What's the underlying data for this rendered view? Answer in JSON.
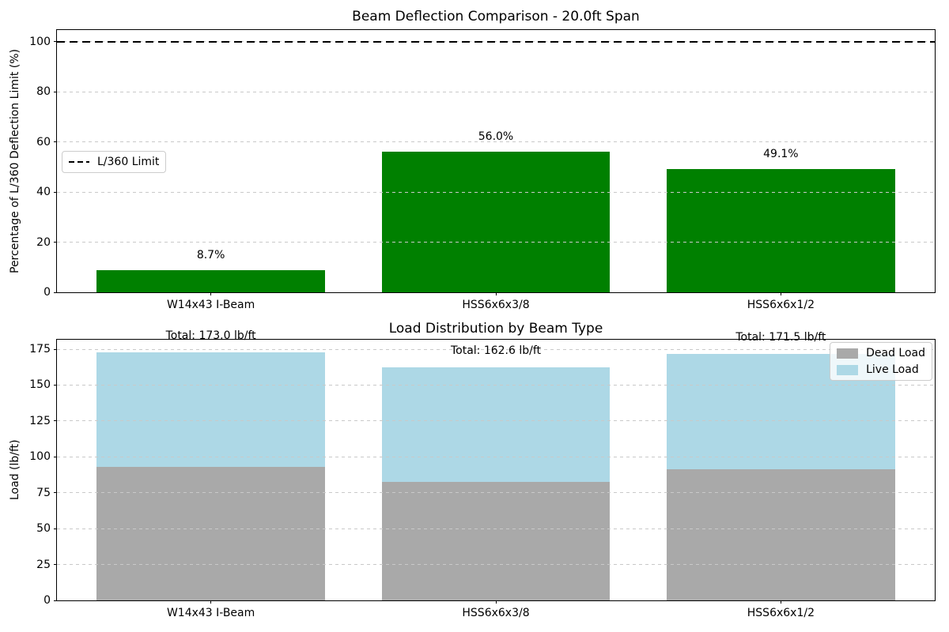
{
  "chart_data": [
    {
      "type": "bar",
      "title": "Beam Deflection Comparison - 20.0ft Span",
      "xlabel": "",
      "ylabel": "Percentage of L/360 Deflection Limit (%)",
      "categories": [
        "W14x43 I-Beam",
        "HSS6x6x3/8",
        "HSS6x6x1/2"
      ],
      "values": [
        8.7,
        56.0,
        49.1
      ],
      "bar_labels": [
        "8.7%",
        "56.0%",
        "49.1%"
      ],
      "bar_color": "#008000",
      "yticks": [
        0,
        20,
        40,
        60,
        80,
        100
      ],
      "ylim": [
        0,
        104.7
      ],
      "xlim": [
        -0.54,
        2.54
      ],
      "grid": true,
      "limit_line": {
        "value": 100,
        "label": "L/360 Limit",
        "color": "#000000",
        "style": "dashed"
      },
      "legend": {
        "position": "left-middle",
        "items": [
          {
            "label": "L/360 Limit",
            "type": "line",
            "color": "#000000"
          }
        ]
      }
    },
    {
      "type": "stacked-bar",
      "title": "Load Distribution by Beam Type",
      "xlabel": "",
      "ylabel": "Load (lb/ft)",
      "categories": [
        "W14x43 I-Beam",
        "HSS6x6x3/8",
        "HSS6x6x1/2"
      ],
      "series": [
        {
          "name": "Dead Load",
          "color": "#A9A9A9",
          "values": [
            93.0,
            82.6,
            91.5
          ]
        },
        {
          "name": "Live Load",
          "color": "#ADD8E6",
          "values": [
            80.0,
            80.0,
            80.0
          ]
        }
      ],
      "totals": [
        173.0,
        162.6,
        171.5
      ],
      "total_labels": [
        "Total: 173.0 lb/ft",
        "Total: 162.6 lb/ft",
        "Total: 171.5 lb/ft"
      ],
      "yticks": [
        0,
        25,
        50,
        75,
        100,
        125,
        150,
        175
      ],
      "ylim": [
        0,
        181.6
      ],
      "xlim": [
        -0.54,
        2.54
      ],
      "grid": true,
      "legend": {
        "position": "top-right",
        "items": [
          {
            "label": "Dead Load",
            "type": "patch",
            "color": "#A9A9A9"
          },
          {
            "label": "Live Load",
            "type": "patch",
            "color": "#ADD8E6"
          }
        ]
      }
    }
  ]
}
